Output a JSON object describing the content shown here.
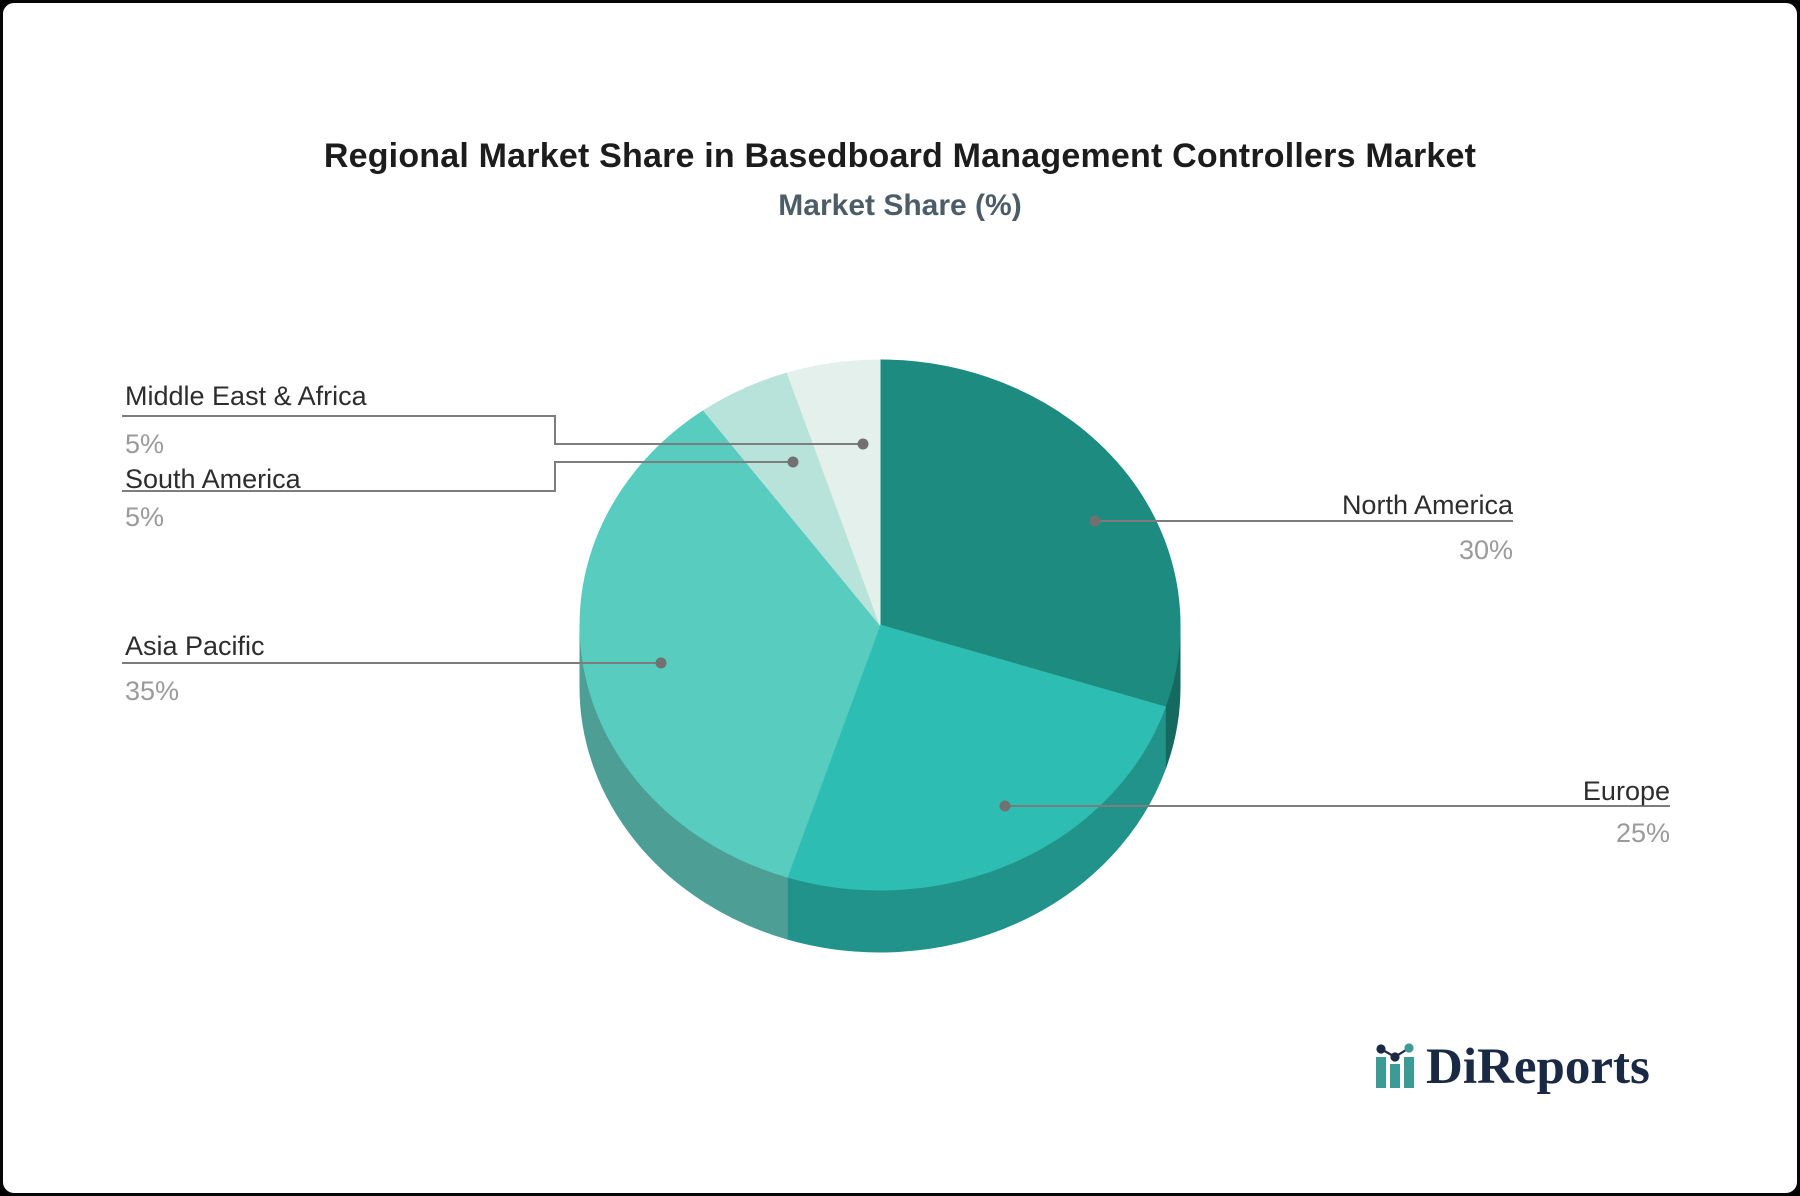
{
  "chart_data": {
    "type": "pie",
    "style": "3d-pie",
    "title": "Regional Market Share in Basedboard Management Controllers Market",
    "subtitle": "Market Share (%)",
    "unit": "%",
    "start_angle_deg": 0,
    "direction": "clockwise",
    "legend_position": "callout-labels",
    "categories": [
      "North America",
      "Europe",
      "Asia Pacific",
      "South America",
      "Middle East & Africa"
    ],
    "values": [
      30,
      25,
      35,
      5,
      5
    ],
    "slices": [
      {
        "id": "north-america",
        "name": "North America",
        "value": 30,
        "pct_text": "30%",
        "color": "#1d8b80",
        "side_color": "#15695f"
      },
      {
        "id": "europe",
        "name": "Europe",
        "value": 25,
        "pct_text": "25%",
        "color": "#2ebdb2",
        "side_color": "#21938a"
      },
      {
        "id": "asia-pacific",
        "name": "Asia Pacific",
        "value": 35,
        "pct_text": "35%",
        "color": "#57ccbf",
        "side_color": "#4d9e94"
      },
      {
        "id": "south-america",
        "name": "South America",
        "value": 5,
        "pct_text": "5%",
        "color": "#b7e3da",
        "side_color": "#8cb3ab"
      },
      {
        "id": "middle-east-africa",
        "name": "Middle East & Africa",
        "value": 5,
        "pct_text": "5%",
        "color": "#e4f0ec",
        "side_color": "#b3c8c2"
      }
    ]
  },
  "logo": {
    "text": "DiReports",
    "icon": "bar-line-chart-icon"
  },
  "colors": {
    "background": "#ffffff",
    "leader_line": "#7d7d7d",
    "dot": "#717171",
    "label_text": "#2d2d2d",
    "pct_text": "#9a9a9a",
    "title_text": "#1c1c1c",
    "subtitle_text": "#4d5d67",
    "logo_text": "#1b2a44",
    "logo_teal": "#3c9b94"
  }
}
